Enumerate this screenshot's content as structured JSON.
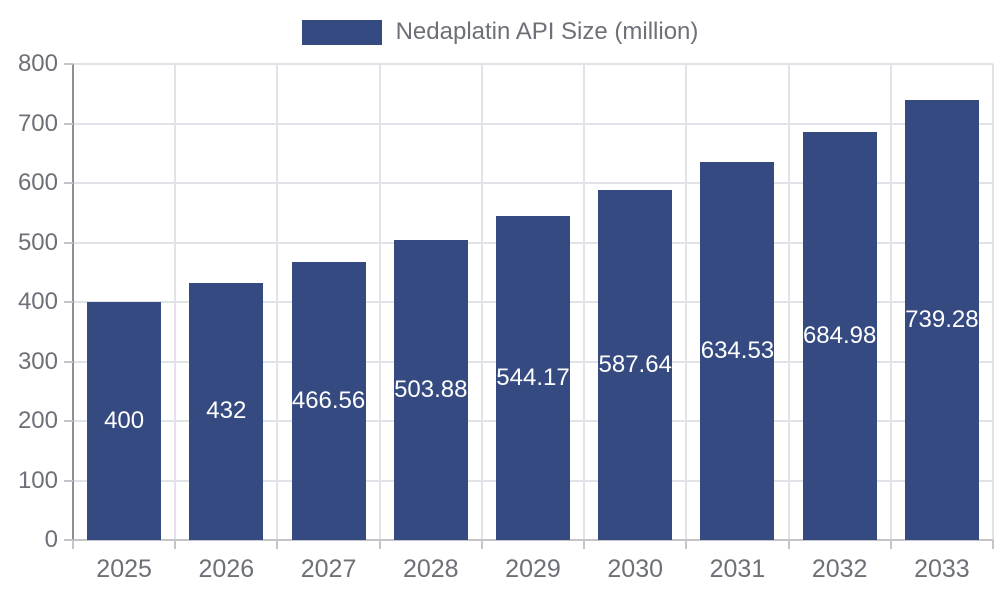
{
  "legend": {
    "position": "top",
    "items": [
      {
        "label": "Nedaplatin API Size (million)",
        "color": "#354A81"
      }
    ]
  },
  "chart_data": {
    "type": "bar",
    "title": "Nedaplatin API Size (million)",
    "categories": [
      "2025",
      "2026",
      "2027",
      "2028",
      "2029",
      "2030",
      "2031",
      "2032",
      "2033"
    ],
    "series": [
      {
        "name": "Nedaplatin API Size (million)",
        "values": [
          400,
          432,
          466.56,
          503.88,
          544.17,
          587.64,
          634.53,
          684.98,
          739.28
        ],
        "labels": [
          "400",
          "432",
          "466.56",
          "503.88",
          "544.17",
          "587.64",
          "634.53",
          "684.98",
          "739.28"
        ],
        "color": "#354A81",
        "label_position": "inside-middle",
        "label_color": "#ffffff"
      }
    ],
    "xlabel": "",
    "ylabel": "",
    "ylim": [
      0,
      800
    ],
    "ytick_step": 100,
    "ytick_labels": [
      "0",
      "100",
      "200",
      "300",
      "400",
      "500",
      "600",
      "700",
      "800"
    ],
    "grid": true,
    "legend_position": "top-center"
  },
  "colors": {
    "bar": "#354A81",
    "axis_label": "#6E7079",
    "gridline": "#E2E2E9",
    "y_axis_line": "#8E8E93",
    "x_axis_line": "#C4C4CA",
    "background": "#ffffff",
    "bar_value_label": "#ffffff"
  }
}
